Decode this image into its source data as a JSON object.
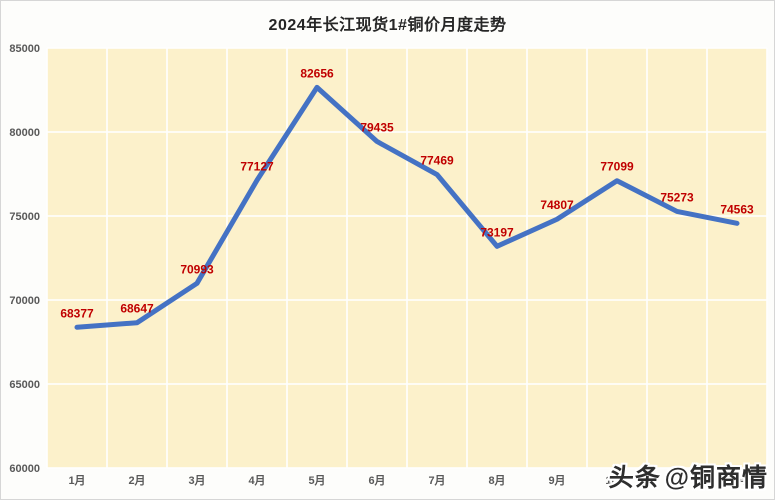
{
  "chart_data": {
    "type": "line",
    "title": "2024年长江现货1#铜价月度走势",
    "categories": [
      "1月",
      "2月",
      "3月",
      "4月",
      "5月",
      "6月",
      "7月",
      "8月",
      "9月",
      "10月",
      "11月",
      "12月"
    ],
    "values": [
      68377,
      68647,
      70993,
      77127,
      82656,
      79435,
      77469,
      73197,
      74807,
      77099,
      75273,
      74563
    ],
    "ylim": [
      60000,
      85000
    ],
    "yticks": [
      60000,
      65000,
      70000,
      75000,
      80000,
      85000
    ],
    "grid": true,
    "legend": "none",
    "data_labels": true,
    "colors": {
      "line": "#4472C4",
      "data_label": "#C00000",
      "plot_bg": "#FCF1CB",
      "axis_text": "#595959",
      "gridline": "#FFFFFF"
    }
  },
  "watermark": {
    "logo": "头条",
    "handle": "@铜商情"
  }
}
